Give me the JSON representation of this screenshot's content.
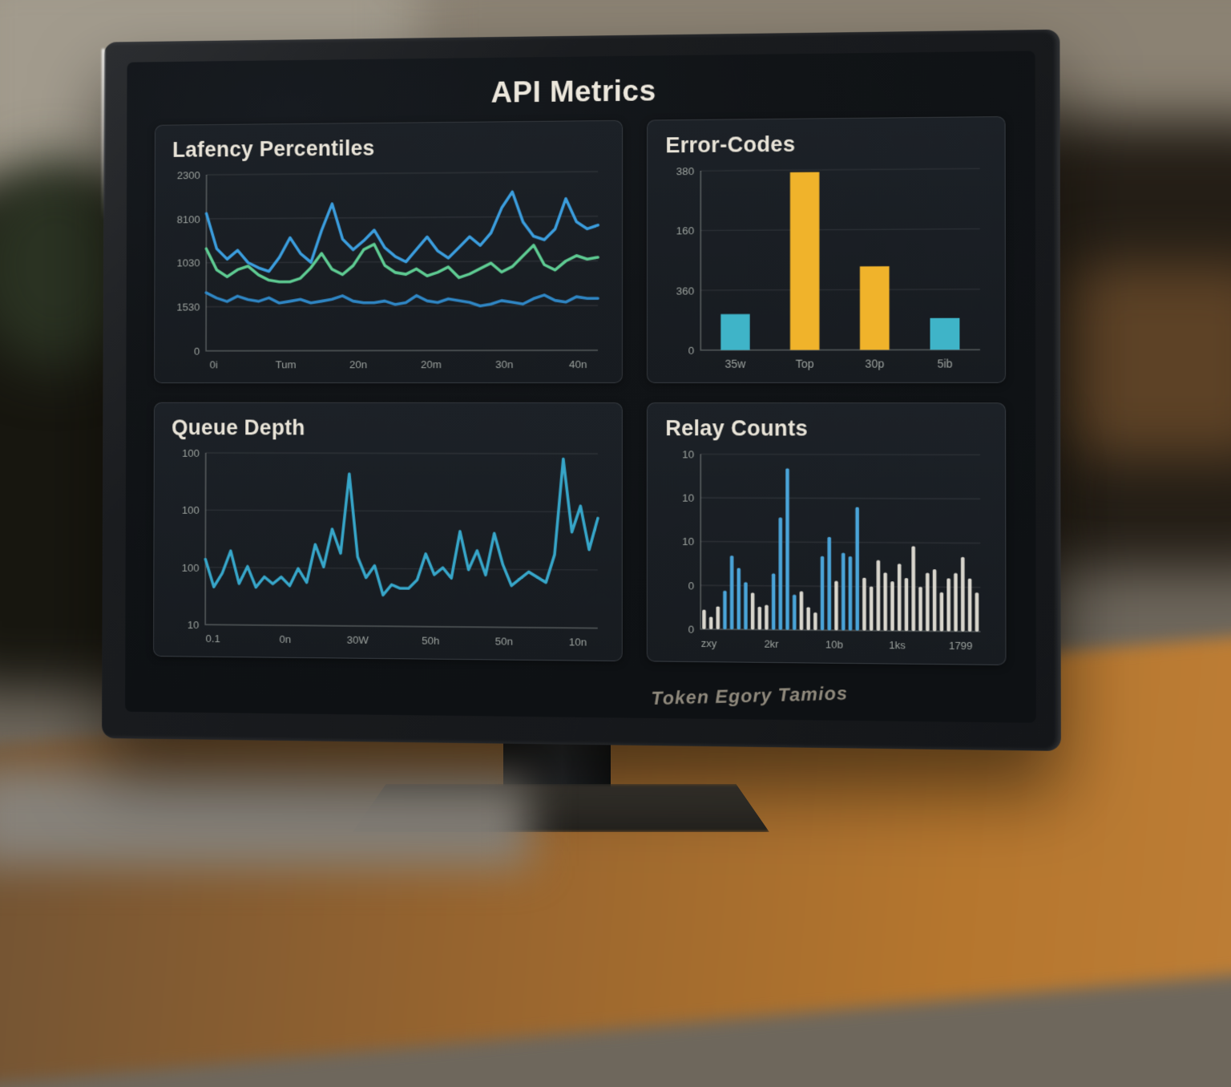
{
  "header": {
    "title": "API Metrics"
  },
  "panels": {
    "latency": {
      "title": "Lafency Percentiles"
    },
    "errors": {
      "title": "Error-Codes"
    },
    "queue": {
      "title": "Queue Depth"
    },
    "relay": {
      "title": "Relay Counts"
    }
  },
  "footer": {
    "caption": "Token Egory Tamios"
  },
  "colors": {
    "line_blue": "#3b9ddd",
    "line_green": "#5ecb92",
    "line_steel": "#2f86c4",
    "line_cyan": "#37a6c9",
    "bar_yellow": "#f0b32b",
    "bar_teal": "#3fb4c8",
    "bar_blue": "#4aa4d8",
    "bar_white": "#d9d6cd",
    "tick_text": "#9aa09c",
    "grid_line": "rgba(255,255,255,0.08)",
    "axis_line": "rgba(200,205,200,0.35)"
  },
  "chart_data": [
    {
      "id": "latency",
      "type": "line",
      "title": "Lafency Percentiles",
      "yticks": [
        "2300",
        "8100",
        "1030",
        "1530",
        "0"
      ],
      "xticks": [
        "0i",
        "Tum",
        "20n",
        "20m",
        "30n",
        "40n"
      ],
      "ylim": [
        0,
        100
      ],
      "grid": true,
      "legend": "none",
      "series": [
        {
          "color": "#3b9ddd",
          "values": [
            78,
            58,
            52,
            57,
            50,
            47,
            45,
            53,
            64,
            55,
            50,
            68,
            83,
            63,
            57,
            62,
            68,
            58,
            53,
            50,
            57,
            64,
            56,
            52,
            58,
            64,
            59,
            66,
            80,
            89,
            72,
            64,
            62,
            68,
            85,
            72,
            68,
            70
          ]
        },
        {
          "color": "#5ecb92",
          "values": [
            58,
            46,
            42,
            46,
            48,
            43,
            40,
            39,
            39,
            41,
            47,
            55,
            46,
            43,
            48,
            57,
            60,
            48,
            44,
            43,
            46,
            42,
            44,
            47,
            41,
            43,
            46,
            49,
            44,
            47,
            53,
            59,
            48,
            45,
            50,
            53,
            51,
            52
          ]
        },
        {
          "color": "#2f86c4",
          "values": [
            33,
            30,
            28,
            31,
            29,
            28,
            30,
            27,
            28,
            29,
            27,
            28,
            29,
            31,
            28,
            27,
            27,
            28,
            26,
            27,
            31,
            28,
            27,
            29,
            28,
            27,
            25,
            26,
            28,
            27,
            26,
            29,
            31,
            28,
            27,
            30,
            29,
            29
          ]
        }
      ]
    },
    {
      "id": "errors",
      "type": "bar",
      "title": "Error-Codes",
      "yticks": [
        "380",
        "160",
        "360",
        "0"
      ],
      "categories": [
        "35w",
        "Top",
        "30p",
        "5ib"
      ],
      "values": [
        80,
        395,
        185,
        70
      ],
      "bar_colors": [
        "#3fb4c8",
        "#f0b32b",
        "#f0b32b",
        "#3fb4c8"
      ],
      "ylim": [
        0,
        400
      ],
      "grid": true,
      "legend": "none"
    },
    {
      "id": "queue",
      "type": "line",
      "title": "Queue Depth",
      "yticks": [
        "100",
        "100",
        "100",
        "10"
      ],
      "xticks": [
        "0.1",
        "0n",
        "30W",
        "50h",
        "50n",
        "10n"
      ],
      "ylim": [
        0,
        100
      ],
      "grid": true,
      "legend": "none",
      "series": [
        {
          "color": "#37a6c9",
          "values": [
            38,
            22,
            30,
            43,
            24,
            34,
            22,
            28,
            24,
            28,
            23,
            33,
            25,
            47,
            34,
            56,
            42,
            88,
            40,
            28,
            35,
            18,
            24,
            22,
            22,
            27,
            42,
            30,
            34,
            28,
            55,
            33,
            44,
            30,
            54,
            36,
            24,
            28,
            32,
            29,
            26,
            42,
            97,
            55,
            70,
            45,
            63
          ]
        }
      ]
    },
    {
      "id": "relay",
      "type": "bar-thin",
      "title": "Relay Counts",
      "yticks": [
        "10",
        "10",
        "10",
        "0",
        "0"
      ],
      "xticks": [
        "zxy",
        "2kr",
        "10b",
        "1ks",
        "1799"
      ],
      "ylim": [
        0,
        100
      ],
      "grid": true,
      "legend": "none",
      "values": [
        11,
        7,
        13,
        22,
        42,
        35,
        27,
        21,
        13,
        14,
        32,
        64,
        92,
        20,
        22,
        13,
        10,
        42,
        53,
        28,
        44,
        42,
        70,
        30,
        25,
        40,
        33,
        28,
        38,
        30,
        48,
        25,
        33,
        35,
        22,
        30,
        33,
        42,
        30,
        22
      ],
      "color_keys": [
        "w",
        "w",
        "w",
        "b",
        "b",
        "b",
        "b",
        "w",
        "w",
        "w",
        "b",
        "b",
        "b",
        "b",
        "w",
        "w",
        "w",
        "b",
        "b",
        "w",
        "b",
        "b",
        "b",
        "w",
        "w",
        "w",
        "w",
        "w",
        "w",
        "w",
        "w",
        "w",
        "w",
        "w",
        "w",
        "w",
        "w",
        "w",
        "w",
        "w"
      ],
      "palette": {
        "b": "#4aa4d8",
        "w": "#d9d6cd"
      }
    }
  ]
}
